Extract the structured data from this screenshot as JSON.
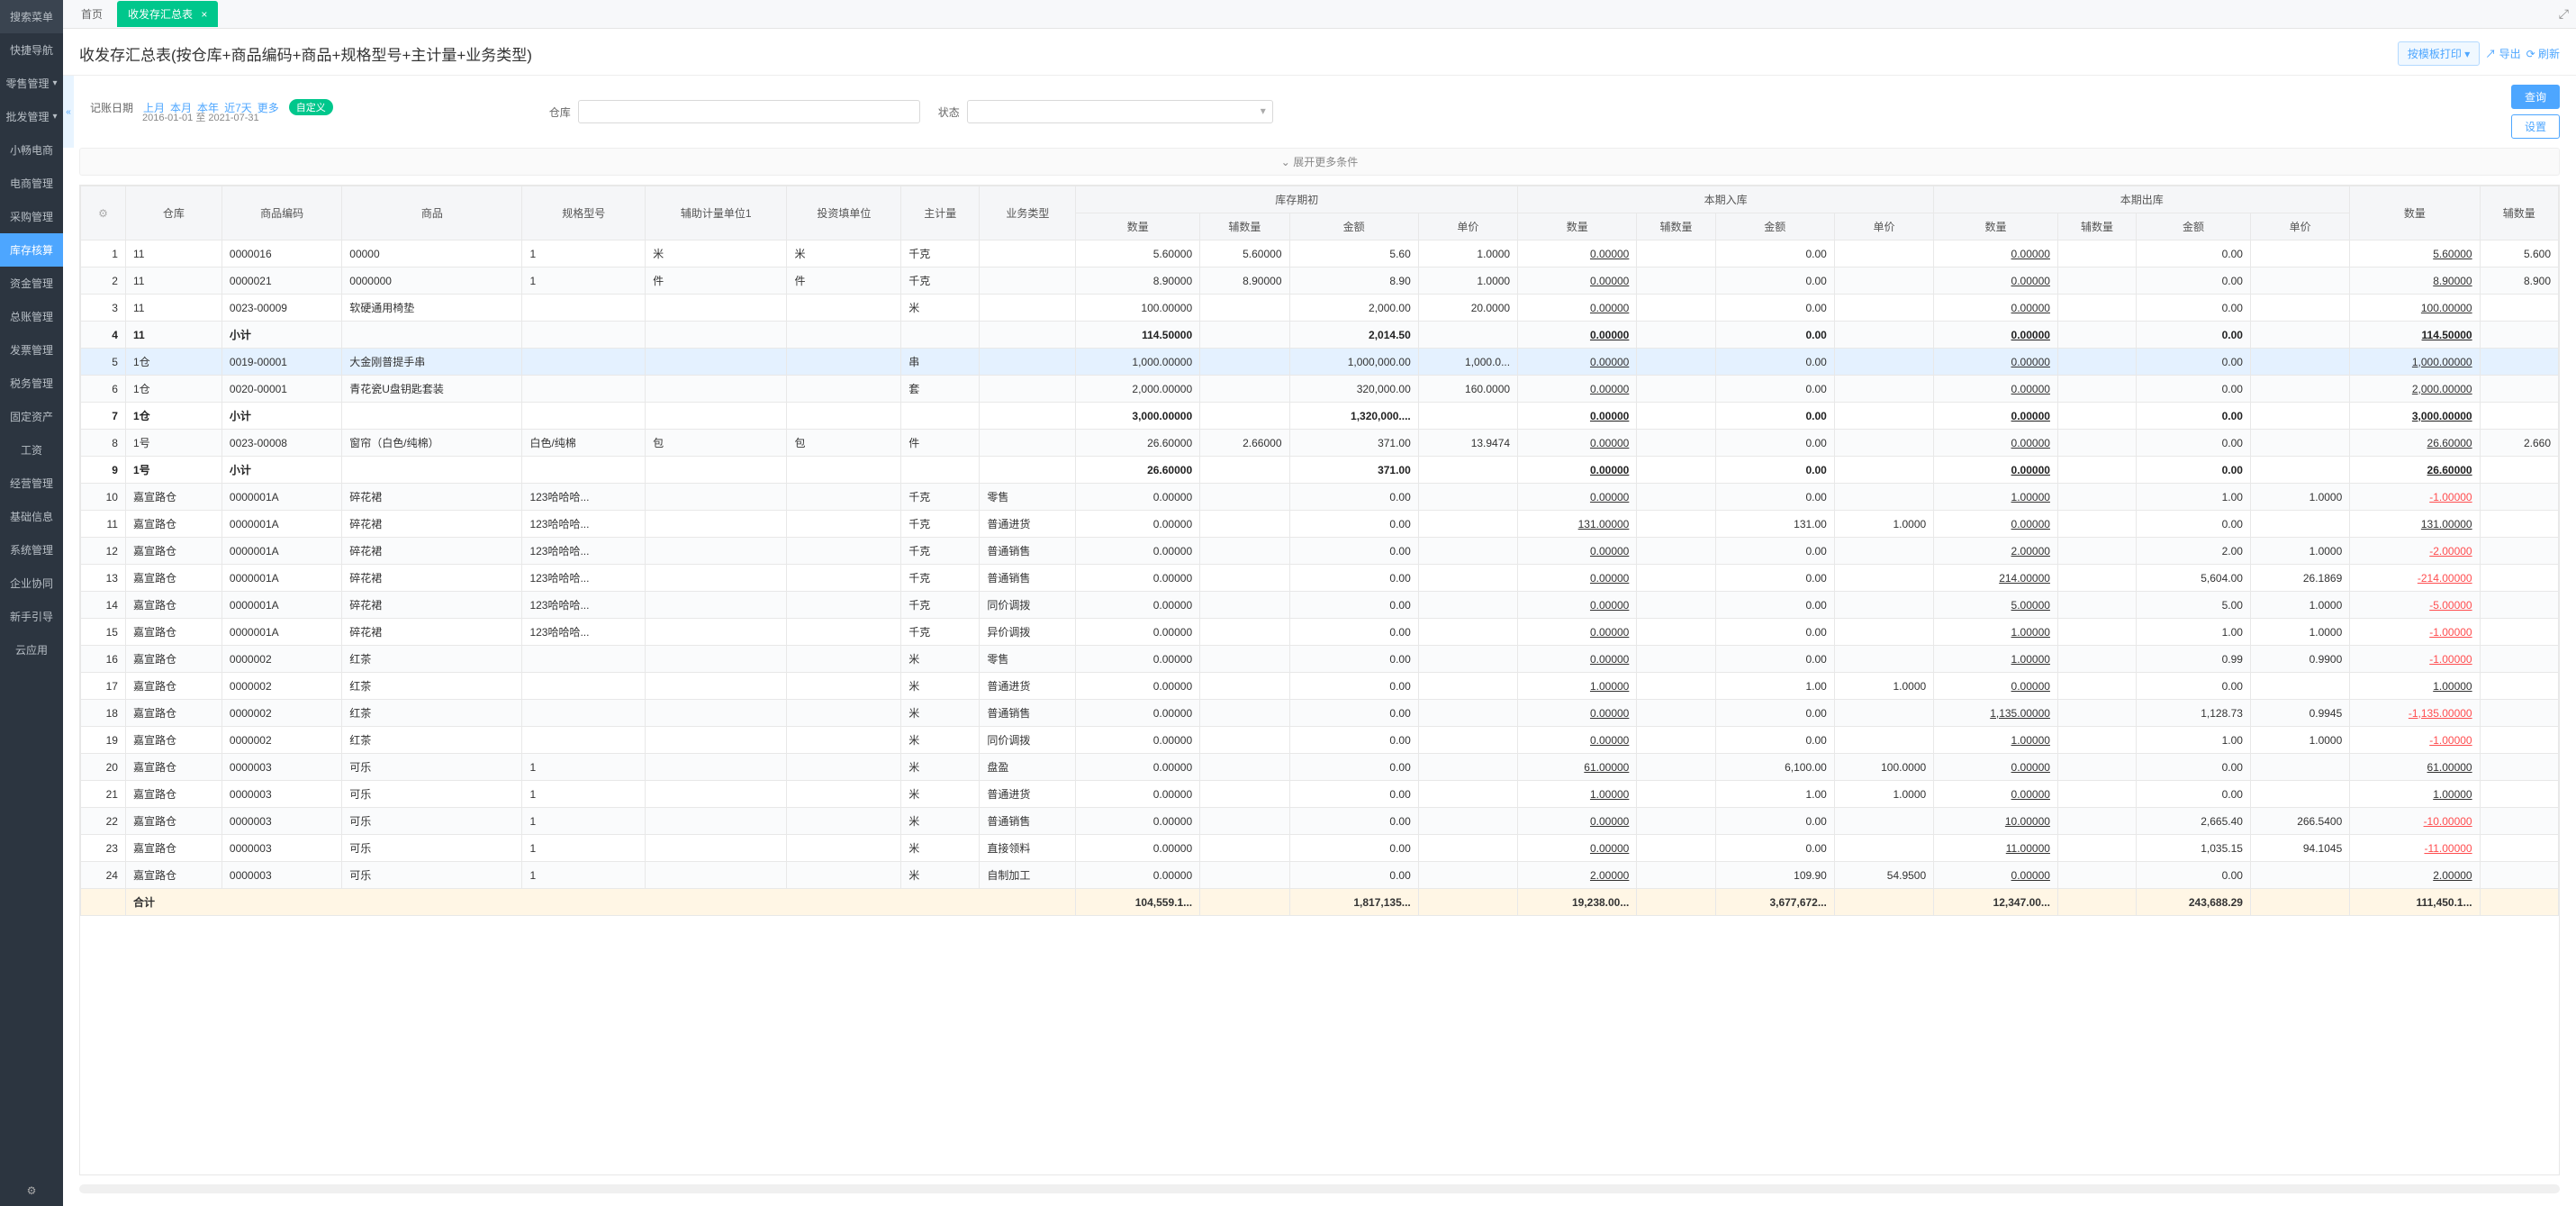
{
  "sidebar": {
    "items": [
      {
        "label": "搜索菜单",
        "caret": false
      },
      {
        "label": "快捷导航",
        "caret": false
      },
      {
        "label": "零售管理",
        "caret": true
      },
      {
        "label": "批发管理",
        "caret": true
      },
      {
        "label": "小畅电商",
        "caret": false
      },
      {
        "label": "电商管理",
        "caret": false
      },
      {
        "label": "采购管理",
        "caret": false
      },
      {
        "label": "库存核算",
        "caret": false,
        "active": true
      },
      {
        "label": "资金管理",
        "caret": false
      },
      {
        "label": "总账管理",
        "caret": false
      },
      {
        "label": "发票管理",
        "caret": false
      },
      {
        "label": "税务管理",
        "caret": false
      },
      {
        "label": "固定资产",
        "caret": false
      },
      {
        "label": "工资",
        "caret": false
      },
      {
        "label": "经营管理",
        "caret": false
      },
      {
        "label": "基础信息",
        "caret": false
      },
      {
        "label": "系统管理",
        "caret": false
      },
      {
        "label": "企业协同",
        "caret": false
      },
      {
        "label": "新手引导",
        "caret": false
      },
      {
        "label": "云应用",
        "caret": false
      }
    ],
    "gear_icon": "⚙"
  },
  "tabs": {
    "home": "首页",
    "active": "收发存汇总表",
    "close": "×",
    "expand": "⤢"
  },
  "title": "收发存汇总表(按仓库+商品编码+商品+规格型号+主计量+业务类型)",
  "toolbar": {
    "print": "按模板打印",
    "print_caret": "▾",
    "export": "导出",
    "refresh": "刷新",
    "refresh_icon": "⟳"
  },
  "filter": {
    "collapse": "«",
    "date_label": "记账日期",
    "links": [
      "上月",
      "本月",
      "本年",
      "近7天",
      "更多"
    ],
    "pill": "自定义",
    "daterange": "2016-01-01 至 2021-07-31",
    "warehouse_label": "仓库",
    "status_label": "状态",
    "status_caret": "▾",
    "query": "查询",
    "settings": "设置",
    "expand_more": "展开更多条件",
    "expand_icon": "⌄"
  },
  "headers": {
    "gear": "⚙",
    "cols_main": [
      "仓库",
      "商品编码",
      "商品",
      "规格型号",
      "辅助计量单位1",
      "投资填单位",
      "主计量",
      "业务类型"
    ],
    "group1": "库存期初",
    "group2": "本期入库",
    "group3": "本期出库",
    "sub": [
      "数量",
      "辅数量",
      "金额",
      "单价"
    ],
    "tail": [
      "数量",
      "辅数量"
    ]
  },
  "rows": [
    {
      "n": 1,
      "wh": "11",
      "code": "0000016",
      "name": "00000",
      "spec": "1",
      "aux": "米",
      "fill": "米",
      "unit": "千克",
      "biz": "",
      "v": [
        "5.60000",
        "5.60000",
        "5.60",
        "1.0000",
        "0.00000",
        "",
        "0.00",
        "",
        "0.00000",
        "",
        "0.00",
        "",
        "5.60000",
        "5.600"
      ]
    },
    {
      "n": 2,
      "wh": "11",
      "code": "0000021",
      "name": "0000000",
      "spec": "1",
      "aux": "件",
      "fill": "件",
      "unit": "千克",
      "biz": "",
      "v": [
        "8.90000",
        "8.90000",
        "8.90",
        "1.0000",
        "0.00000",
        "",
        "0.00",
        "",
        "0.00000",
        "",
        "0.00",
        "",
        "8.90000",
        "8.900"
      ]
    },
    {
      "n": 3,
      "wh": "11",
      "code": "0023-00009",
      "name": "软硬通用椅垫",
      "spec": "",
      "aux": "",
      "fill": "",
      "unit": "米",
      "biz": "",
      "v": [
        "100.00000",
        "",
        "2,000.00",
        "20.0000",
        "0.00000",
        "",
        "0.00",
        "",
        "0.00000",
        "",
        "0.00",
        "",
        "100.00000",
        ""
      ]
    },
    {
      "n": 4,
      "sub": true,
      "wh": "11",
      "code": "小计",
      "name": "",
      "spec": "",
      "aux": "",
      "fill": "",
      "unit": "",
      "biz": "",
      "v": [
        "114.50000",
        "",
        "2,014.50",
        "",
        "0.00000",
        "",
        "0.00",
        "",
        "0.00000",
        "",
        "0.00",
        "",
        "114.50000",
        ""
      ]
    },
    {
      "n": 5,
      "sel": true,
      "wh": "1仓",
      "code": "0019-00001",
      "name": "大金刚普提手串",
      "spec": "",
      "aux": "",
      "fill": "",
      "unit": "串",
      "biz": "",
      "v": [
        "1,000.00000",
        "",
        "1,000,000.00",
        "1,000.0...",
        "0.00000",
        "",
        "0.00",
        "",
        "0.00000",
        "",
        "0.00",
        "",
        "1,000.00000",
        ""
      ]
    },
    {
      "n": 6,
      "wh": "1仓",
      "code": "0020-00001",
      "name": "青花瓷U盘钥匙套装",
      "spec": "",
      "aux": "",
      "fill": "",
      "unit": "套",
      "biz": "",
      "v": [
        "2,000.00000",
        "",
        "320,000.00",
        "160.0000",
        "0.00000",
        "",
        "0.00",
        "",
        "0.00000",
        "",
        "0.00",
        "",
        "2,000.00000",
        ""
      ]
    },
    {
      "n": 7,
      "sub": true,
      "wh": "1仓",
      "code": "小计",
      "name": "",
      "spec": "",
      "aux": "",
      "fill": "",
      "unit": "",
      "biz": "",
      "v": [
        "3,000.00000",
        "",
        "1,320,000....",
        "",
        "0.00000",
        "",
        "0.00",
        "",
        "0.00000",
        "",
        "0.00",
        "",
        "3,000.00000",
        ""
      ]
    },
    {
      "n": 8,
      "wh": "1号",
      "code": "0023-00008",
      "name": "窗帘（白色/纯棉）",
      "spec": "白色/纯棉",
      "aux": "包",
      "fill": "包",
      "unit": "件",
      "biz": "",
      "v": [
        "26.60000",
        "2.66000",
        "371.00",
        "13.9474",
        "0.00000",
        "",
        "0.00",
        "",
        "0.00000",
        "",
        "0.00",
        "",
        "26.60000",
        "2.660"
      ]
    },
    {
      "n": 9,
      "sub": true,
      "wh": "1号",
      "code": "小计",
      "name": "",
      "spec": "",
      "aux": "",
      "fill": "",
      "unit": "",
      "biz": "",
      "v": [
        "26.60000",
        "",
        "371.00",
        "",
        "0.00000",
        "",
        "0.00",
        "",
        "0.00000",
        "",
        "0.00",
        "",
        "26.60000",
        ""
      ]
    },
    {
      "n": 10,
      "wh": "嘉宣路仓",
      "code": "0000001A",
      "name": "碎花裙",
      "spec": "123哈哈哈...",
      "aux": "",
      "fill": "",
      "unit": "千克",
      "biz": "零售",
      "v": [
        "0.00000",
        "",
        "0.00",
        "",
        "0.00000",
        "",
        "0.00",
        "",
        "1.00000",
        "",
        "1.00",
        "1.0000",
        "-1.00000",
        ""
      ],
      "neg": [
        12
      ]
    },
    {
      "n": 11,
      "wh": "嘉宣路仓",
      "code": "0000001A",
      "name": "碎花裙",
      "spec": "123哈哈哈...",
      "aux": "",
      "fill": "",
      "unit": "千克",
      "biz": "普通进货",
      "v": [
        "0.00000",
        "",
        "0.00",
        "",
        "131.00000",
        "",
        "131.00",
        "1.0000",
        "0.00000",
        "",
        "0.00",
        "",
        "131.00000",
        ""
      ]
    },
    {
      "n": 12,
      "wh": "嘉宣路仓",
      "code": "0000001A",
      "name": "碎花裙",
      "spec": "123哈哈哈...",
      "aux": "",
      "fill": "",
      "unit": "千克",
      "biz": "普通销售",
      "v": [
        "0.00000",
        "",
        "0.00",
        "",
        "0.00000",
        "",
        "0.00",
        "",
        "2.00000",
        "",
        "2.00",
        "1.0000",
        "-2.00000",
        ""
      ],
      "neg": [
        12
      ]
    },
    {
      "n": 13,
      "wh": "嘉宣路仓",
      "code": "0000001A",
      "name": "碎花裙",
      "spec": "123哈哈哈...",
      "aux": "",
      "fill": "",
      "unit": "千克",
      "biz": "普通销售",
      "v": [
        "0.00000",
        "",
        "0.00",
        "",
        "0.00000",
        "",
        "0.00",
        "",
        "214.00000",
        "",
        "5,604.00",
        "26.1869",
        "-214.00000",
        ""
      ],
      "neg": [
        12
      ]
    },
    {
      "n": 14,
      "wh": "嘉宣路仓",
      "code": "0000001A",
      "name": "碎花裙",
      "spec": "123哈哈哈...",
      "aux": "",
      "fill": "",
      "unit": "千克",
      "biz": "同价调拨",
      "v": [
        "0.00000",
        "",
        "0.00",
        "",
        "0.00000",
        "",
        "0.00",
        "",
        "5.00000",
        "",
        "5.00",
        "1.0000",
        "-5.00000",
        ""
      ],
      "neg": [
        12
      ]
    },
    {
      "n": 15,
      "wh": "嘉宣路仓",
      "code": "0000001A",
      "name": "碎花裙",
      "spec": "123哈哈哈...",
      "aux": "",
      "fill": "",
      "unit": "千克",
      "biz": "异价调拨",
      "v": [
        "0.00000",
        "",
        "0.00",
        "",
        "0.00000",
        "",
        "0.00",
        "",
        "1.00000",
        "",
        "1.00",
        "1.0000",
        "-1.00000",
        ""
      ],
      "neg": [
        12
      ]
    },
    {
      "n": 16,
      "wh": "嘉宣路仓",
      "code": "0000002",
      "name": "红茶",
      "spec": "",
      "aux": "",
      "fill": "",
      "unit": "米",
      "biz": "零售",
      "v": [
        "0.00000",
        "",
        "0.00",
        "",
        "0.00000",
        "",
        "0.00",
        "",
        "1.00000",
        "",
        "0.99",
        "0.9900",
        "-1.00000",
        ""
      ],
      "neg": [
        12
      ]
    },
    {
      "n": 17,
      "wh": "嘉宣路仓",
      "code": "0000002",
      "name": "红茶",
      "spec": "",
      "aux": "",
      "fill": "",
      "unit": "米",
      "biz": "普通进货",
      "v": [
        "0.00000",
        "",
        "0.00",
        "",
        "1.00000",
        "",
        "1.00",
        "1.0000",
        "0.00000",
        "",
        "0.00",
        "",
        "1.00000",
        ""
      ]
    },
    {
      "n": 18,
      "wh": "嘉宣路仓",
      "code": "0000002",
      "name": "红茶",
      "spec": "",
      "aux": "",
      "fill": "",
      "unit": "米",
      "biz": "普通销售",
      "v": [
        "0.00000",
        "",
        "0.00",
        "",
        "0.00000",
        "",
        "0.00",
        "",
        "1,135.00000",
        "",
        "1,128.73",
        "0.9945",
        "-1,135.00000",
        ""
      ],
      "neg": [
        12
      ]
    },
    {
      "n": 19,
      "wh": "嘉宣路仓",
      "code": "0000002",
      "name": "红茶",
      "spec": "",
      "aux": "",
      "fill": "",
      "unit": "米",
      "biz": "同价调拨",
      "v": [
        "0.00000",
        "",
        "0.00",
        "",
        "0.00000",
        "",
        "0.00",
        "",
        "1.00000",
        "",
        "1.00",
        "1.0000",
        "-1.00000",
        ""
      ],
      "neg": [
        12
      ]
    },
    {
      "n": 20,
      "wh": "嘉宣路仓",
      "code": "0000003",
      "name": "可乐",
      "spec": "1",
      "aux": "",
      "fill": "",
      "unit": "米",
      "biz": "盘盈",
      "v": [
        "0.00000",
        "",
        "0.00",
        "",
        "61.00000",
        "",
        "6,100.00",
        "100.0000",
        "0.00000",
        "",
        "0.00",
        "",
        "61.00000",
        ""
      ]
    },
    {
      "n": 21,
      "wh": "嘉宣路仓",
      "code": "0000003",
      "name": "可乐",
      "spec": "1",
      "aux": "",
      "fill": "",
      "unit": "米",
      "biz": "普通进货",
      "v": [
        "0.00000",
        "",
        "0.00",
        "",
        "1.00000",
        "",
        "1.00",
        "1.0000",
        "0.00000",
        "",
        "0.00",
        "",
        "1.00000",
        ""
      ]
    },
    {
      "n": 22,
      "wh": "嘉宣路仓",
      "code": "0000003",
      "name": "可乐",
      "spec": "1",
      "aux": "",
      "fill": "",
      "unit": "米",
      "biz": "普通销售",
      "v": [
        "0.00000",
        "",
        "0.00",
        "",
        "0.00000",
        "",
        "0.00",
        "",
        "10.00000",
        "",
        "2,665.40",
        "266.5400",
        "-10.00000",
        ""
      ],
      "neg": [
        12
      ]
    },
    {
      "n": 23,
      "wh": "嘉宣路仓",
      "code": "0000003",
      "name": "可乐",
      "spec": "1",
      "aux": "",
      "fill": "",
      "unit": "米",
      "biz": "直接领料",
      "v": [
        "0.00000",
        "",
        "0.00",
        "",
        "0.00000",
        "",
        "0.00",
        "",
        "11.00000",
        "",
        "1,035.15",
        "94.1045",
        "-11.00000",
        ""
      ],
      "neg": [
        12
      ]
    },
    {
      "n": 24,
      "wh": "嘉宣路仓",
      "code": "0000003",
      "name": "可乐",
      "spec": "1",
      "aux": "",
      "fill": "",
      "unit": "米",
      "biz": "自制加工",
      "v": [
        "0.00000",
        "",
        "0.00",
        "",
        "2.00000",
        "",
        "109.90",
        "54.9500",
        "0.00000",
        "",
        "0.00",
        "",
        "2.00000",
        ""
      ]
    }
  ],
  "footer": {
    "label": "合计",
    "v": [
      "104,559.1...",
      "",
      "1,817,135...",
      "",
      "19,238.00...",
      "",
      "3,677,672...",
      "",
      "12,347.00...",
      "",
      "243,688.29",
      "",
      "111,450.1...",
      ""
    ]
  },
  "underline_cols": [
    4,
    8,
    12
  ]
}
